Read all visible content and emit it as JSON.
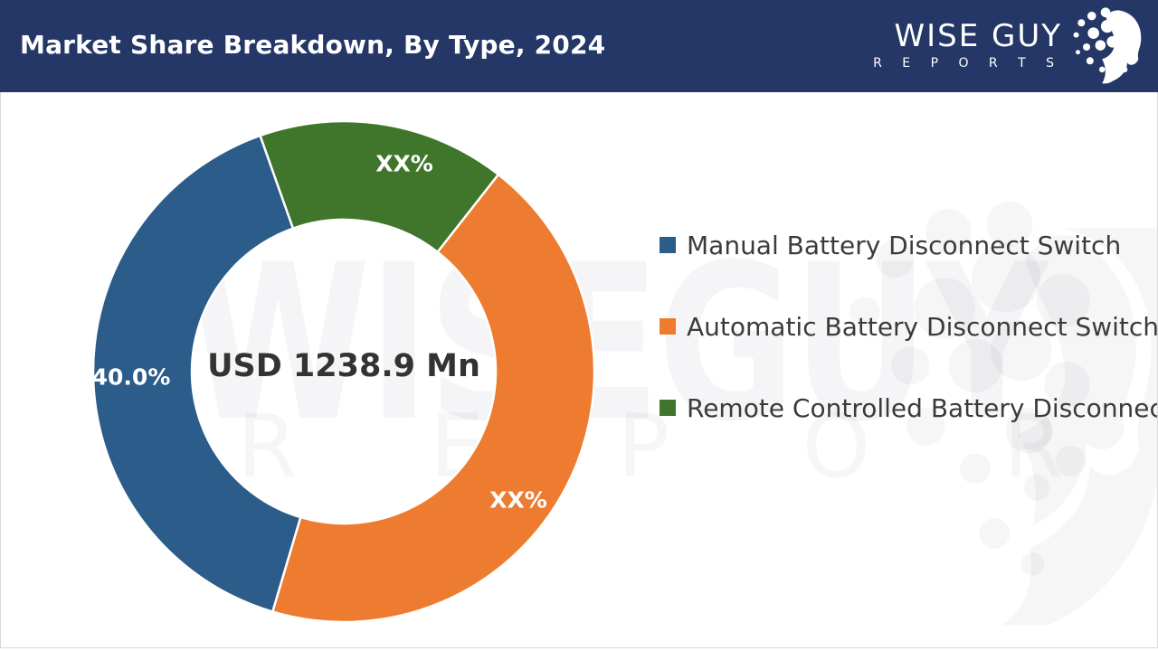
{
  "header": {
    "title": "Market Share Breakdown, By Type, 2024",
    "bg_color": "#243767",
    "logo": {
      "line1": "WISE GUY",
      "line2": "R E P O R T S"
    }
  },
  "watermark": {
    "line1": "WISEGUY",
    "line2": "R E P O R T S"
  },
  "chart_data": {
    "type": "pie",
    "subtype": "donut",
    "title": "Market Share Breakdown, By Type, 2024",
    "center_label": "USD 1238.9 Mn",
    "legend_position": "right",
    "start_angle_cw_from_top_deg": 196.5,
    "arc_order": [
      0,
      2,
      1
    ],
    "slices": [
      {
        "label": "Manual Battery Disconnect Switch",
        "value_pct": 40.0,
        "display_label": "40.0%",
        "color": "#2b5c8a"
      },
      {
        "label": "Automatic Battery Disconnect Switch",
        "value_pct": 44.0,
        "display_label": "XX%",
        "color": "#ed7c30"
      },
      {
        "label": "Remote Controlled Battery Disconnect Switch",
        "value_pct": 16.0,
        "display_label": "XX%",
        "color": "#40762c"
      }
    ]
  }
}
